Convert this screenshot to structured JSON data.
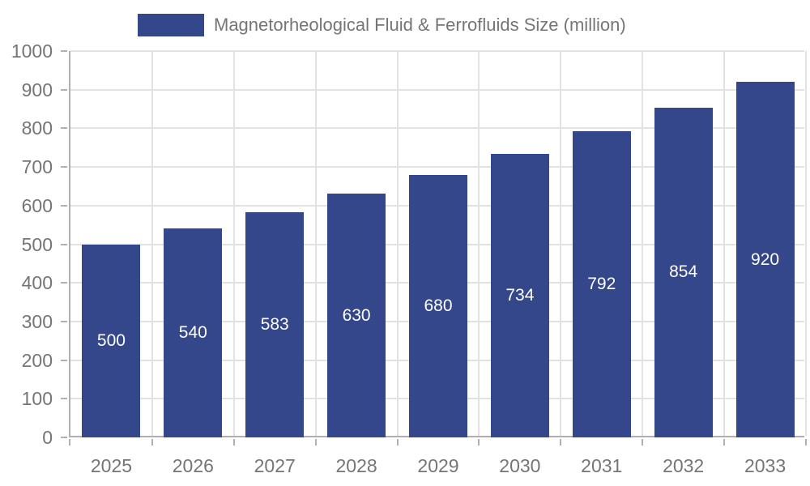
{
  "chart_data": {
    "type": "bar",
    "title": "Magnetorheological Fluid & Ferrofluids Size (million)",
    "categories": [
      "2025",
      "2026",
      "2027",
      "2028",
      "2029",
      "2030",
      "2031",
      "2032",
      "2033"
    ],
    "values": [
      500,
      540,
      583,
      630,
      680,
      734,
      792,
      854,
      920
    ],
    "series": [
      {
        "name": "Magnetorheological Fluid & Ferrofluids Size (million)",
        "values": [
          500,
          540,
          583,
          630,
          680,
          734,
          792,
          854,
          920
        ]
      }
    ],
    "xlabel": "",
    "ylabel": "",
    "ylim": [
      0,
      1000
    ],
    "yticks": [
      0,
      100,
      200,
      300,
      400,
      500,
      600,
      700,
      800,
      900,
      1000
    ],
    "grid": true,
    "legend_position": "top",
    "bar_labels_visible": true
  },
  "legend": {
    "label": "Magnetorheological Fluid & Ferrofluids Size (million)"
  },
  "colors": {
    "bar": "#35478b",
    "bar_label": "#ffffff",
    "axis_text": "#757575",
    "gridline": "#e2e2e2",
    "axis_line": "#b0b0b0",
    "background": "#ffffff"
  }
}
